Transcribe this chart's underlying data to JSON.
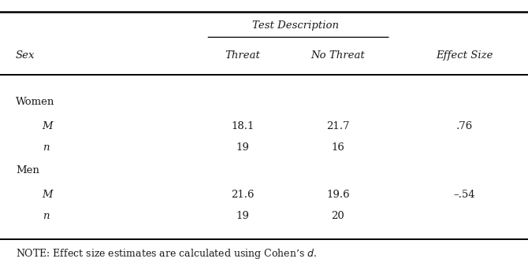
{
  "col_header_group": "Test Description",
  "col_headers_italic": [
    "Sex",
    "Threat",
    "No Threat",
    "Effect Size"
  ],
  "rows": [
    {
      "label": "Women",
      "indent": false,
      "italic_label": false,
      "threat": "",
      "no_threat": "",
      "effect_size": ""
    },
    {
      "label": "M",
      "indent": true,
      "italic_label": true,
      "threat": "18.1",
      "no_threat": "21.7",
      "effect_size": ".76"
    },
    {
      "label": "n",
      "indent": true,
      "italic_label": true,
      "threat": "19",
      "no_threat": "16",
      "effect_size": ""
    },
    {
      "label": "Men",
      "indent": false,
      "italic_label": false,
      "threat": "",
      "no_threat": "",
      "effect_size": ""
    },
    {
      "label": "M",
      "indent": true,
      "italic_label": true,
      "threat": "21.6",
      "no_threat": "19.6",
      "effect_size": "–.54"
    },
    {
      "label": "n",
      "indent": true,
      "italic_label": true,
      "threat": "19",
      "no_threat": "20",
      "effect_size": ""
    }
  ],
  "note": "NOTE: Effect size estimates are calculated using Cohen’s $\\it{d}$.",
  "background_color": "#ffffff",
  "text_color": "#1a1a1a",
  "font_size": 9.5,
  "figsize": [
    6.7,
    3.38
  ],
  "dpi": 100
}
